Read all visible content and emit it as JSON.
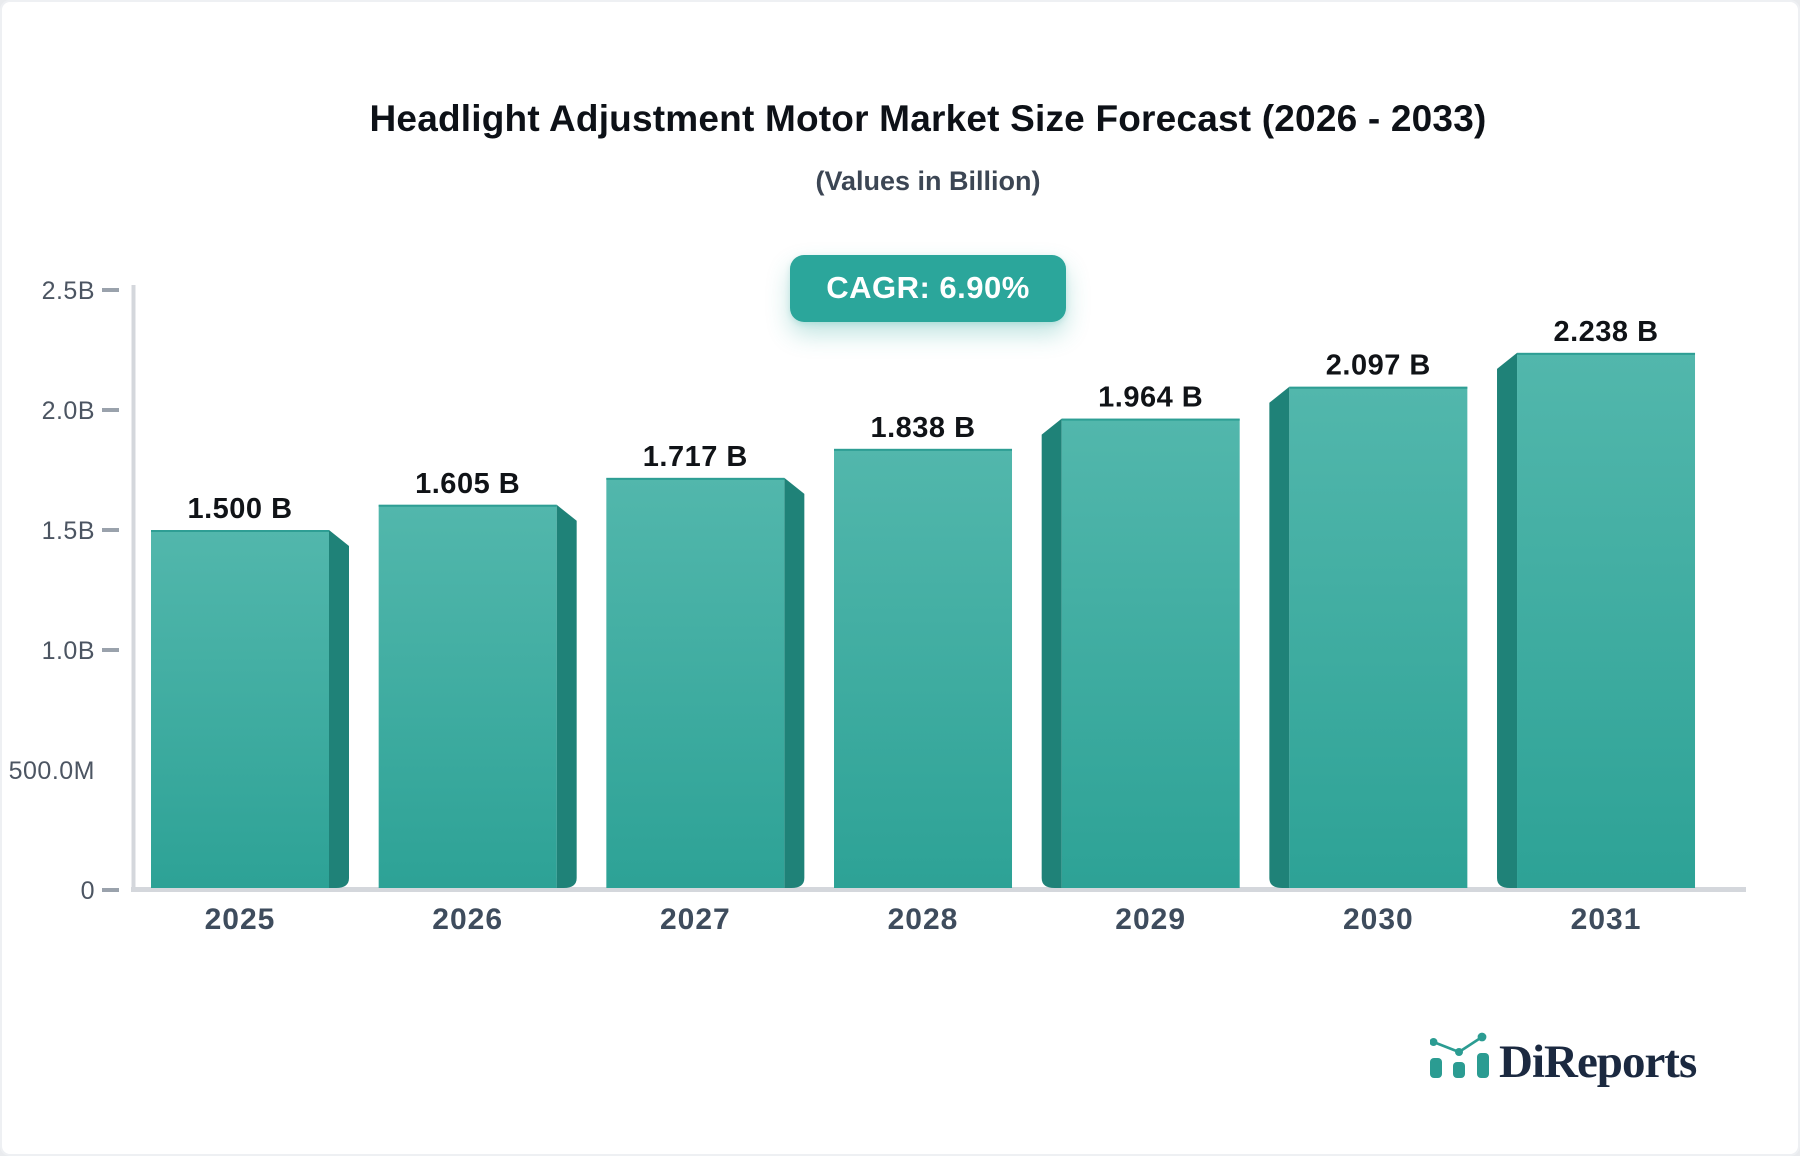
{
  "chart_data": {
    "type": "bar",
    "title": "Headlight Adjustment Motor Market Size Forecast (2026 - 2033)",
    "subtitle": "(Values in Billion)",
    "annotation_badge": "CAGR: 6.90%",
    "categories": [
      "2025",
      "2026",
      "2027",
      "2028",
      "2029",
      "2030",
      "2031"
    ],
    "values": [
      1.5,
      1.605,
      1.717,
      1.838,
      1.964,
      2.097,
      2.238
    ],
    "value_labels": [
      "1.500 B",
      "1.605 B",
      "1.717 B",
      "1.838 B",
      "1.964 B",
      "2.097 B",
      "2.238 B"
    ],
    "unit": "Billion",
    "ylim": [
      0,
      2.5
    ],
    "y_ticks": [
      {
        "label": "0",
        "value": 0,
        "dash": true
      },
      {
        "label": "500.0M",
        "value": 0.5,
        "dash": false
      },
      {
        "label": "1.0B",
        "value": 1.0,
        "dash": true
      },
      {
        "label": "1.5B",
        "value": 1.5,
        "dash": true
      },
      {
        "label": "2.0B",
        "value": 2.0,
        "dash": true
      },
      {
        "label": "2.5B",
        "value": 2.5,
        "dash": true
      }
    ],
    "grid": "off",
    "legend": "none",
    "bar_style": "3d-extruded-toward-center"
  },
  "colors": {
    "bar_face_top": "#52b7ac",
    "bar_face_bottom": "#2da296",
    "bar_side": "#1f8278",
    "bar_top_edge": "#2e9e94",
    "axis_line": "#d4d7dc",
    "tick_dash": "#9aa2ac",
    "tick_label": "#4c5562",
    "category_label": "#3e4c5d",
    "value_label": "#101317",
    "badge_bg": "#2ba69b",
    "badge_text": "#ffffff",
    "logo_navy": "#1b2940",
    "logo_teal": "#2b9c92"
  },
  "logo": {
    "brand": "DiReports",
    "icon": "mini-bar-line-chart-icon"
  }
}
